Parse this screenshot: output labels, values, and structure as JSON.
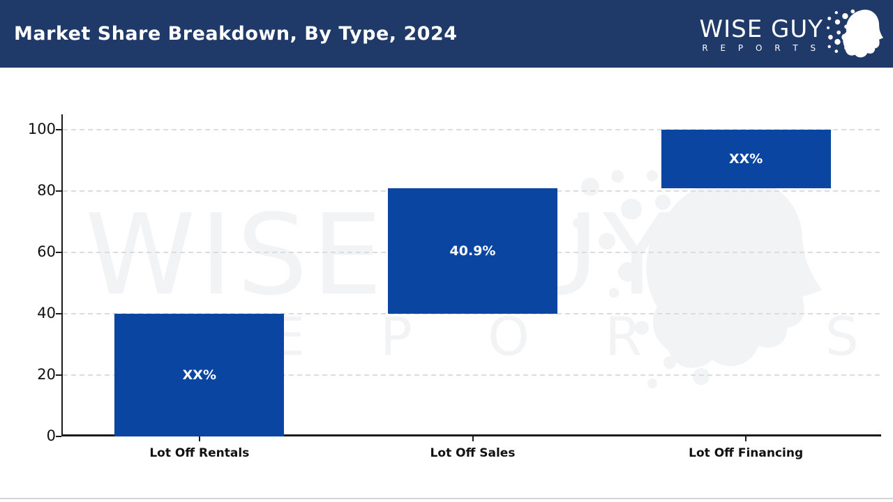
{
  "header": {
    "title": "Market Share Breakdown, By Type, 2024",
    "bg_color": "#1f3a68",
    "logo": {
      "line1": "WISE GUY",
      "line2": "R E P O R T S"
    }
  },
  "watermark": {
    "line1": "WISE GUY",
    "line2": "R E P O R T S"
  },
  "chart_data": {
    "type": "bar",
    "subtype": "floating-segment-waterfall",
    "title": "Market Share Breakdown, By Type, 2024",
    "categories": [
      "Lot Off Rentals",
      "Lot Off Sales",
      "Lot Off Financing"
    ],
    "segments": [
      {
        "category": "Lot Off Rentals",
        "start": 0,
        "end": 40,
        "label": "XX%"
      },
      {
        "category": "Lot Off Sales",
        "start": 40,
        "end": 80.9,
        "label": "40.9%"
      },
      {
        "category": "Lot Off Financing",
        "start": 80.9,
        "end": 100,
        "label": "XX%"
      }
    ],
    "ylim": [
      0,
      105
    ],
    "yticks": [
      0,
      20,
      40,
      60,
      80,
      100
    ],
    "grid": "horizontal-dashed",
    "legend": "none",
    "bar_color": "#0a46a1",
    "bar_label_color": "#ffffff",
    "axis_color": "#1a1a1a"
  }
}
